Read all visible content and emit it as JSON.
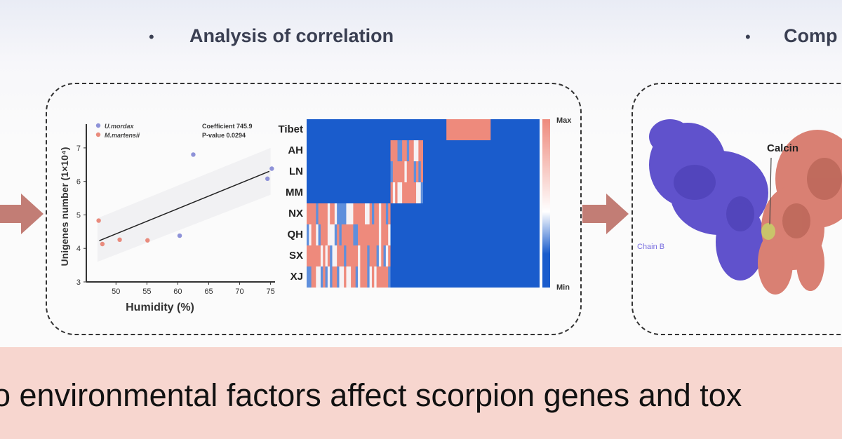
{
  "headings": {
    "left": "Analysis of correlation",
    "right": "Comp"
  },
  "banner": "o environmental factors affect scorpion genes and tox",
  "colors": {
    "arrow": "#c27d75",
    "band": "#f7d6cf",
    "u_mordax": "#8e92d8",
    "m_martensii": "#e98b7d",
    "heat_high": "#ee8a7c",
    "heat_low": "#1a5ccc"
  },
  "chart_data": [
    {
      "type": "scatter",
      "xlabel": "Humidity  (%)",
      "ylabel": "Unigenes number (1×10⁴)",
      "xlim": [
        45.2,
        75.5
      ],
      "ylim": [
        3,
        7.5
      ],
      "xticks": [
        50,
        55,
        60,
        65,
        70,
        75
      ],
      "yticks": [
        3,
        4,
        5,
        6,
        7
      ],
      "annotations": [
        "Coefficient 745.9",
        "P-value 0.0294"
      ],
      "legend_position": "top-left",
      "series": [
        {
          "name": "U.mordax",
          "color": "#8e92d8",
          "points": [
            [
              62.5,
              6.8
            ],
            [
              60.3,
              4.38
            ],
            [
              74.5,
              6.08
            ],
            [
              75.2,
              6.38
            ]
          ]
        },
        {
          "name": "M.martensii",
          "color": "#e98b7d",
          "points": [
            [
              47.2,
              4.83
            ],
            [
              47.8,
              4.13
            ],
            [
              50.6,
              4.26
            ],
            [
              55.1,
              4.24
            ]
          ]
        }
      ],
      "fit_line": [
        [
          47.3,
          4.23
        ],
        [
          74.8,
          6.3
        ]
      ]
    },
    {
      "type": "heatmap",
      "rows": [
        "Tibet",
        "AH",
        "LN",
        "MM",
        "NX",
        "QH",
        "SX",
        "XJ"
      ],
      "columns": 100,
      "high_ranges": [
        [
          [
            60,
            79
          ]
        ],
        [
          [
            36,
            50
          ]
        ],
        [
          [
            36,
            50
          ]
        ],
        [
          [
            36,
            50
          ]
        ],
        [
          [
            0,
            36
          ]
        ],
        [
          [
            0,
            36
          ]
        ],
        [
          [
            0,
            36
          ]
        ],
        [
          [
            0,
            36
          ]
        ]
      ],
      "colorbar": {
        "max": "Max",
        "min": "Min"
      }
    }
  ],
  "protein": {
    "label": "Calcin",
    "chain": "Chain B"
  }
}
